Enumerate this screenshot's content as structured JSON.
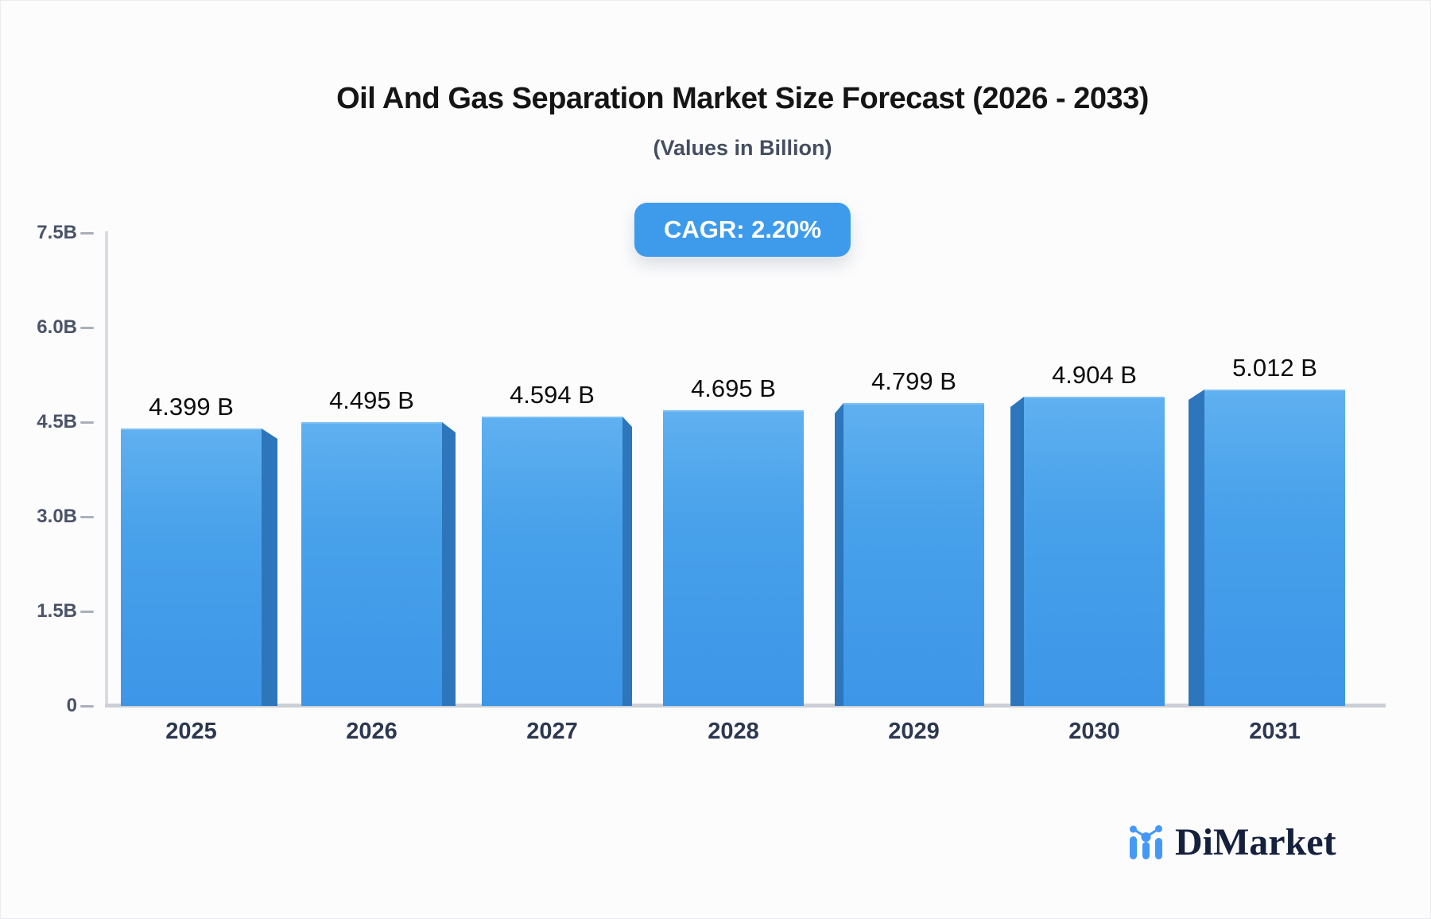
{
  "header": {
    "title": "Oil And Gas Separation Market Size Forecast (2026 - 2033)",
    "subtitle": "(Values in Billion)",
    "badge_label": "CAGR: 2.20%"
  },
  "chart_data": {
    "type": "bar",
    "title": "Oil And Gas Separation Market Size Forecast (2026 - 2033)",
    "subtitle": "(Values in Billion)",
    "categories": [
      "2025",
      "2026",
      "2027",
      "2028",
      "2029",
      "2030",
      "2031"
    ],
    "values": [
      4.399,
      4.495,
      4.594,
      4.695,
      4.799,
      4.904,
      5.012
    ],
    "value_labels": [
      "4.399 B",
      "4.495 B",
      "4.594 B",
      "4.695 B",
      "4.799 B",
      "4.904 B",
      "5.012 B"
    ],
    "xlabel": "",
    "ylabel": "",
    "ylim": [
      0,
      7.5
    ],
    "y_tick_labels_top_to_bottom": [
      "7.5B",
      "6.0B",
      "4.5B",
      "3.0B",
      "1.5B",
      "0"
    ],
    "grid": false,
    "legend": false,
    "cagr": "2.20%",
    "bar_style": "3d-perspective",
    "colors": {
      "bar_face": "#459eea",
      "bar_face_highlight": "#5fb0f0",
      "bar_side": "#2d76bb",
      "badge": "#3e9bec",
      "axis": "#ccd0d6",
      "tick_text": "#4a5368",
      "category_text": "#2c3850",
      "value_text": "#0d0d0d"
    }
  },
  "footer": {
    "brand": "DiMarket",
    "brand_color": "#15213c",
    "icon": "bar-line-chart-icon",
    "icon_color": "#4498f6"
  }
}
